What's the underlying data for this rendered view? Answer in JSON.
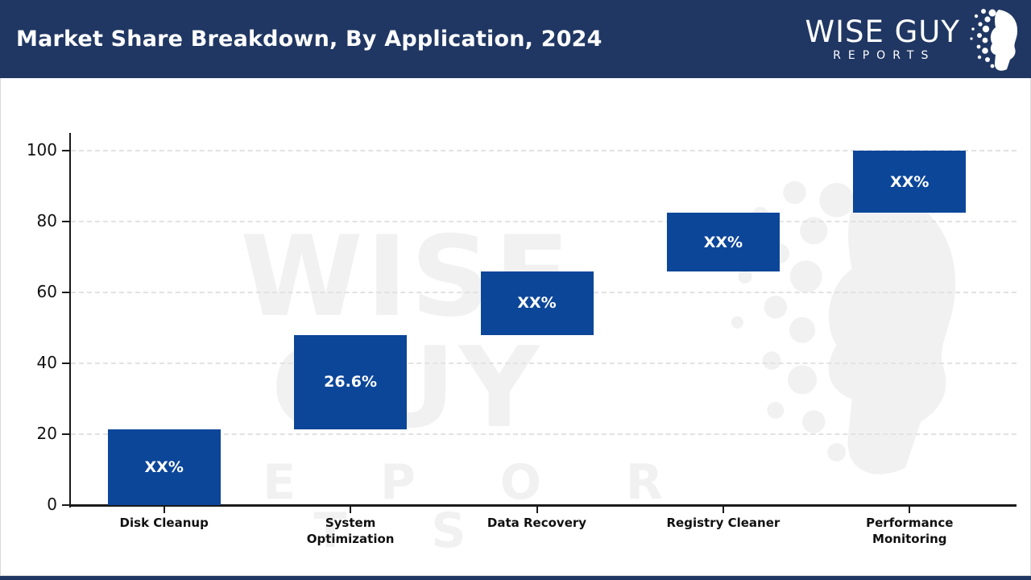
{
  "header": {
    "title": "Market Share Breakdown, By Application, 2024",
    "bg_color": "#203763",
    "logo": {
      "line1": "WISE GUY",
      "line2": "REPORTS"
    }
  },
  "watermark": {
    "line1": "WISE GUY",
    "line2": "R E P O R T S"
  },
  "chart_data": {
    "type": "bar",
    "subtype": "waterfall-floating-bars",
    "title": "Market Share Breakdown, By Application, 2024",
    "categories": [
      "Disk Cleanup",
      "System Optimization",
      "Data Recovery",
      "Registry Cleaner",
      "Performance Monitoring"
    ],
    "segments": [
      {
        "category": "Disk Cleanup",
        "start": 0,
        "end": 21.4,
        "label": "XX%"
      },
      {
        "category": "System Optimization",
        "start": 21.4,
        "end": 48.0,
        "label": "26.6%"
      },
      {
        "category": "Data Recovery",
        "start": 48.0,
        "end": 65.9,
        "label": "XX%"
      },
      {
        "category": "Registry Cleaner",
        "start": 65.9,
        "end": 82.5,
        "label": "XX%"
      },
      {
        "category": "Performance Monitoring",
        "start": 82.5,
        "end": 100,
        "label": "XX%"
      }
    ],
    "y_ticks": [
      0,
      20,
      40,
      60,
      80,
      100
    ],
    "ylim": [
      0,
      100
    ],
    "xlabel": "",
    "ylabel": "",
    "grid": "horizontal-dashed",
    "legend": "none",
    "bar_color": "#0c4699",
    "bar_label_color": "#ffffff",
    "axis_color": "#1a1a1a",
    "gridline_color": "#e2e2e2"
  }
}
